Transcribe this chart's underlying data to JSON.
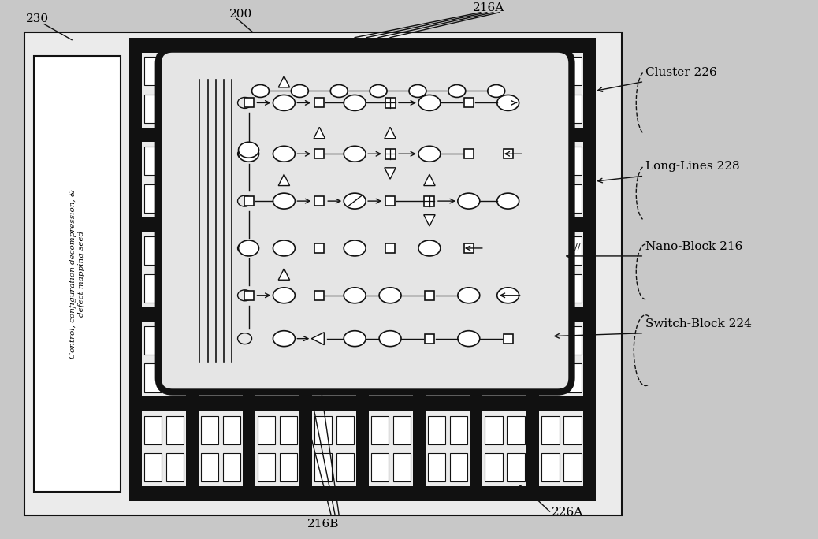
{
  "fig_w": 10.38,
  "fig_h": 6.84,
  "bg_color": "#c8c8c8",
  "gc": "#111111",
  "white": "#ffffff",
  "light_gray": "#e8e8e8",
  "ctrl_text": "Control, configuration decompression, &\ndefect mapping seed",
  "label_230": "230",
  "label_200": "200",
  "label_216A": "216A",
  "label_cluster": "Cluster 226",
  "label_longlines": "Long-Lines 228",
  "label_nanoblock": "Nano-Block 216",
  "label_switchblock": "Switch-Block 224",
  "label_226A": "226A",
  "label_216B": "216B"
}
